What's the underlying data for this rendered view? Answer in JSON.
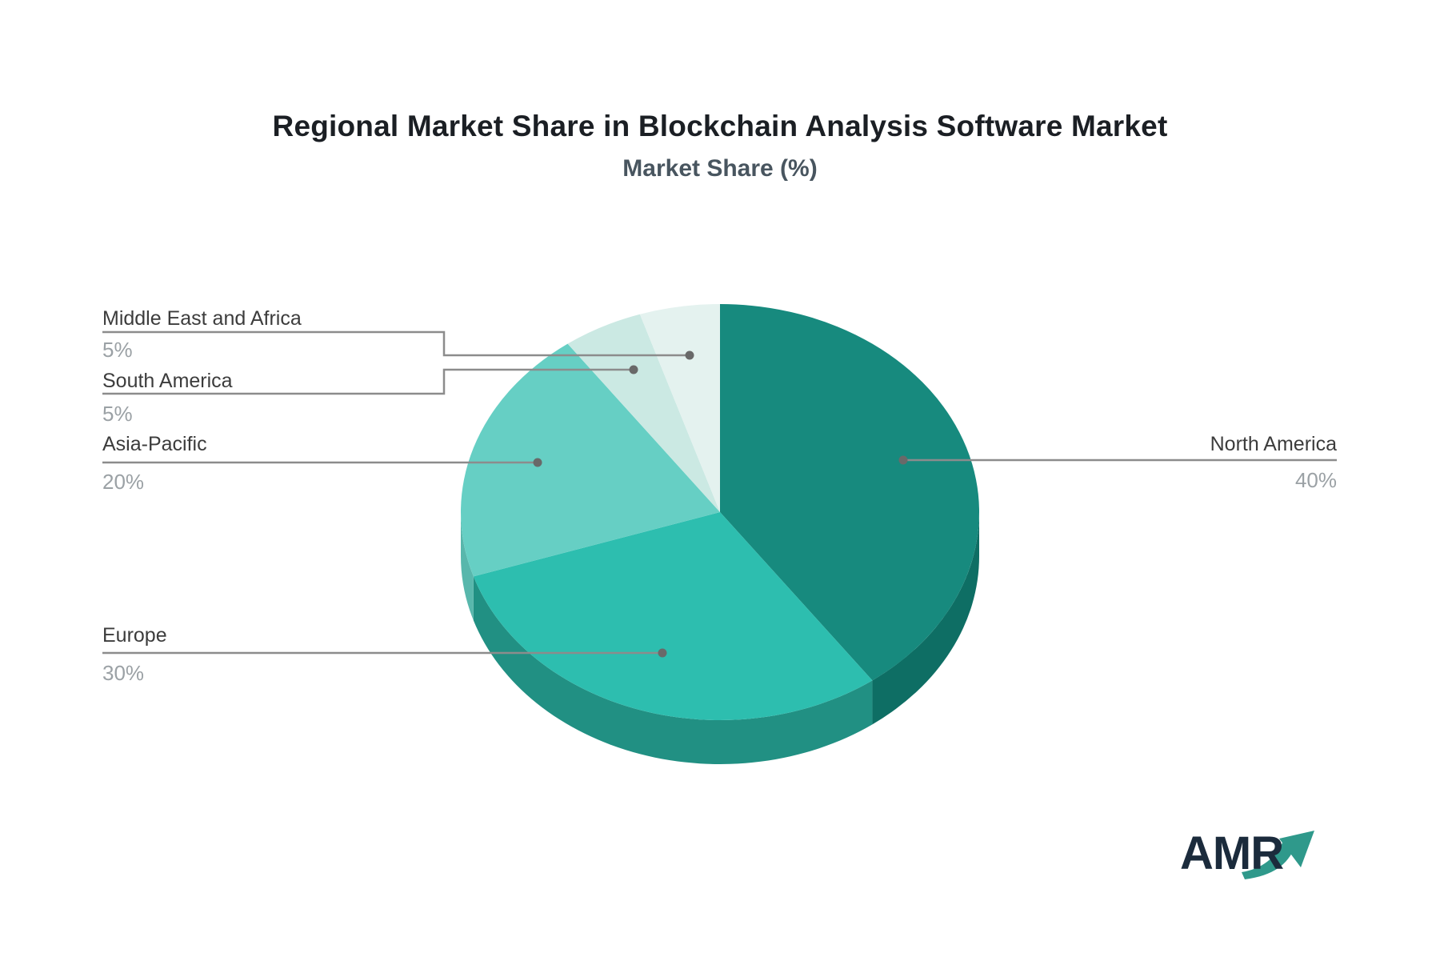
{
  "header": {
    "title": "Regional Market Share in Blockchain Analysis Software Market",
    "subtitle": "Market Share (%)"
  },
  "chart_data": {
    "type": "pie",
    "title": "Regional Market Share in Blockchain Analysis Software Market",
    "subtitle": "Market Share (%)",
    "unit": "%",
    "style": "3d-pie",
    "start_position": "12-oclock",
    "direction": "clockwise",
    "legend": "none",
    "label_style": "callout-lines",
    "slices": [
      {
        "name": "North America",
        "value": 40,
        "label": "40%",
        "color": "#178A7E",
        "side_color": "#0E6E64"
      },
      {
        "name": "Europe",
        "value": 30,
        "label": "30%",
        "color": "#2DBEAF",
        "side_color": "#219083"
      },
      {
        "name": "Asia-Pacific",
        "value": 20,
        "label": "20%",
        "color": "#66CFC4",
        "side_color": "#58B7AC"
      },
      {
        "name": "South America",
        "value": 5,
        "label": "5%",
        "color": "#CBE9E3",
        "side_color": "#B4D8D1"
      },
      {
        "name": "Middle East and Africa",
        "value": 5,
        "label": "5%",
        "color": "#E4F2EF",
        "side_color": "#CCE1DD"
      }
    ],
    "callout_line_color": "#8C8C8C",
    "callout_dot_color": "#696969"
  },
  "logo": {
    "text": "AMR",
    "text_color": "#1B2B3C",
    "arrow_color": "#2F998B"
  }
}
